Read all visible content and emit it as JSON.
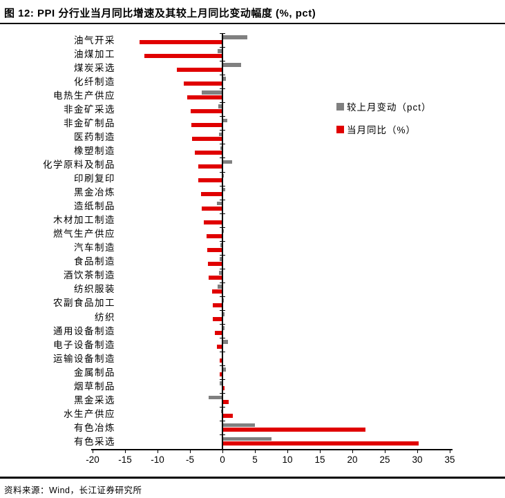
{
  "header": {
    "title": "图  12: PPI 分行业当月同比增速及其较上月同比变动幅度 (%, pct)"
  },
  "footer": {
    "source": "资料来源：Wind，长江证券研究所"
  },
  "colors": {
    "yoy_red": "#e00000",
    "mom_gray": "#808080",
    "axis_black": "#000000"
  },
  "chart_data": {
    "type": "bar",
    "orientation": "horizontal",
    "title": "PPI 分行业当月同比增速及其较上月同比变动幅度 (%, pct)",
    "xlabel": "",
    "ylabel": "",
    "xlim": [
      -20,
      35
    ],
    "xticks": [
      -20,
      -15,
      -10,
      -5,
      0,
      5,
      10,
      15,
      20,
      25,
      30,
      35
    ],
    "grid": false,
    "legend_position": "inside-upper-right",
    "categories": [
      "油气开采",
      "油煤加工",
      "煤炭采选",
      "化纤制造",
      "电热生产供应",
      "非金矿采选",
      "非金矿制品",
      "医药制造",
      "橡塑制造",
      "化学原料及制品",
      "印刷复印",
      "黑金冶炼",
      "造纸制品",
      "木材加工制造",
      "燃气生产供应",
      "汽车制造",
      "食品制造",
      "酒饮茶制造",
      "纺织服装",
      "农副食品加工",
      "纺织",
      "通用设备制造",
      "电子设备制造",
      "运输设备制造",
      "金属制品",
      "烟草制品",
      "黑金采选",
      "水生产供应",
      "有色冶炼",
      "有色采选"
    ],
    "series": [
      {
        "name": "较上月变动（pct）",
        "color": "#808080",
        "values": [
          3.8,
          -0.7,
          2.9,
          0.5,
          -3.2,
          -0.6,
          0.7,
          -0.5,
          -0.3,
          1.5,
          0.2,
          0.4,
          -0.9,
          0.1,
          0.2,
          -0.3,
          -0.4,
          -0.5,
          -0.7,
          0.2,
          0.3,
          0.3,
          0.8,
          0.1,
          0.5,
          -0.4,
          -2.1,
          -0.2,
          5.0,
          7.6
        ]
      },
      {
        "name": "当月同比（%）",
        "color": "#e00000",
        "values": [
          -12.8,
          -12.0,
          -7.0,
          -6.0,
          -5.4,
          -4.9,
          -4.8,
          -4.7,
          -4.3,
          -3.7,
          -3.7,
          -3.3,
          -3.2,
          -2.9,
          -2.5,
          -2.3,
          -2.2,
          -2.1,
          -1.6,
          -1.5,
          -1.5,
          -1.2,
          -0.9,
          -0.4,
          -0.4,
          0.3,
          1.0,
          1.6,
          22.0,
          30.2
        ]
      }
    ]
  }
}
